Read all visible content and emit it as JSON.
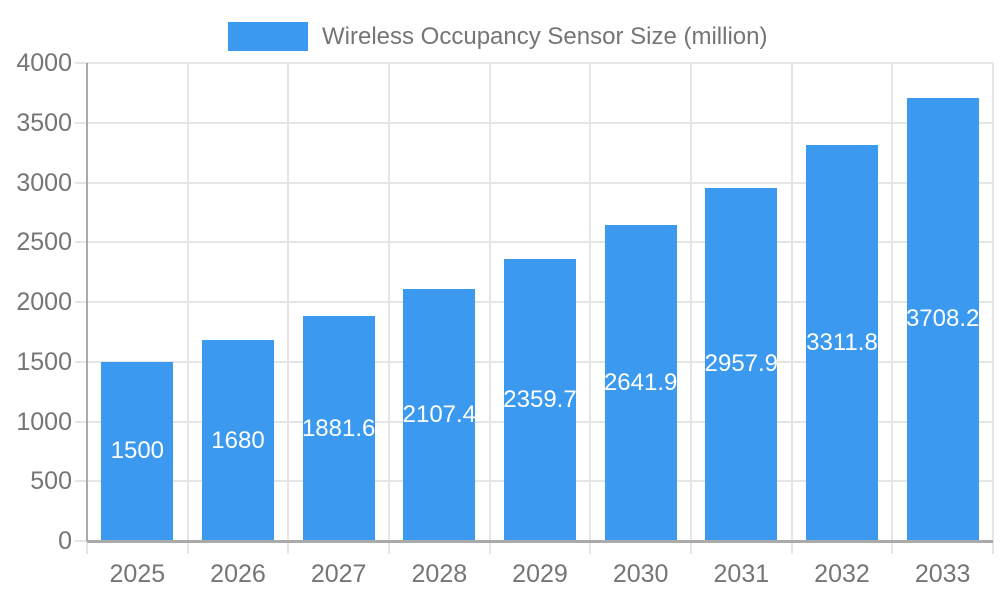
{
  "legend": {
    "label": "Wireless Occupancy Sensor Size (million)"
  },
  "colors": {
    "bar": "#3B9AF0",
    "grid": "#E5E5E5",
    "axis": "#AAAAAA",
    "tick_text": "#757575",
    "legend_text": "#757575",
    "bar_label_text": "#FFFFFF",
    "background": "#FFFFFF"
  },
  "chart_data": {
    "type": "bar",
    "title": "Wireless Occupancy Sensor Size (million)",
    "categories": [
      "2025",
      "2026",
      "2027",
      "2028",
      "2029",
      "2030",
      "2031",
      "2032",
      "2033"
    ],
    "values": [
      1500,
      1680,
      1881.6,
      2107.4,
      2359.7,
      2641.9,
      2957.9,
      3311.8,
      3708.2
    ],
    "value_labels": [
      "1500",
      "1680",
      "1881.6",
      "2107.4",
      "2359.7",
      "2641.9",
      "2957.9",
      "3311.8",
      "3708.2"
    ],
    "xlabel": "",
    "ylabel": "",
    "ylim": [
      0,
      4000
    ],
    "ytick_step": 500,
    "yticks": [
      0,
      500,
      1000,
      1500,
      2000,
      2500,
      3000,
      3500,
      4000
    ],
    "grid": true,
    "legend_position": "top",
    "value_label_position": "inside-center"
  }
}
